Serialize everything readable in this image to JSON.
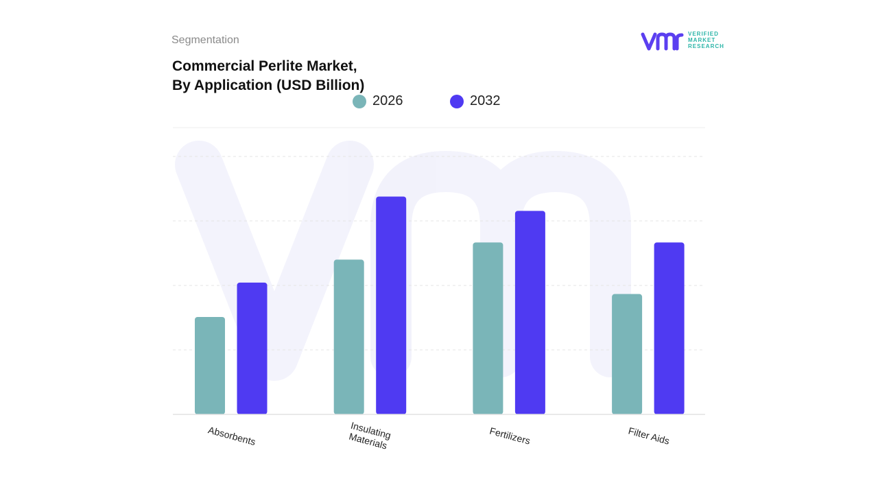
{
  "header": {
    "segment_label": "Segmentation",
    "title_line1": "Commercial Perlite Market,",
    "title_line2": "By Application (USD Billion)"
  },
  "logo": {
    "line1": "VERIFIED",
    "line2": "MARKET",
    "line3": "RESEARCH",
    "icon": "vmr-logo-icon",
    "color_primary": "#5b3ff0",
    "color_secondary": "#2bb5a8"
  },
  "chart_data": {
    "type": "bar",
    "title": "Commercial Perlite Market, By Application (USD Billion)",
    "categories": [
      [
        "Absorbents"
      ],
      [
        "Insulating",
        "Materials"
      ],
      [
        "Fertilizers"
      ],
      [
        "Filter Aids"
      ]
    ],
    "series": [
      {
        "name": "2026",
        "color": "#7ab5b8",
        "values": [
          1.7,
          2.7,
          3.0,
          2.1
        ]
      },
      {
        "name": "2032",
        "color": "#4f3af2",
        "values": [
          2.3,
          3.8,
          3.55,
          3.0
        ]
      }
    ],
    "ylim": [
      0,
      4.5
    ],
    "grid": true,
    "legend_position": "top"
  }
}
